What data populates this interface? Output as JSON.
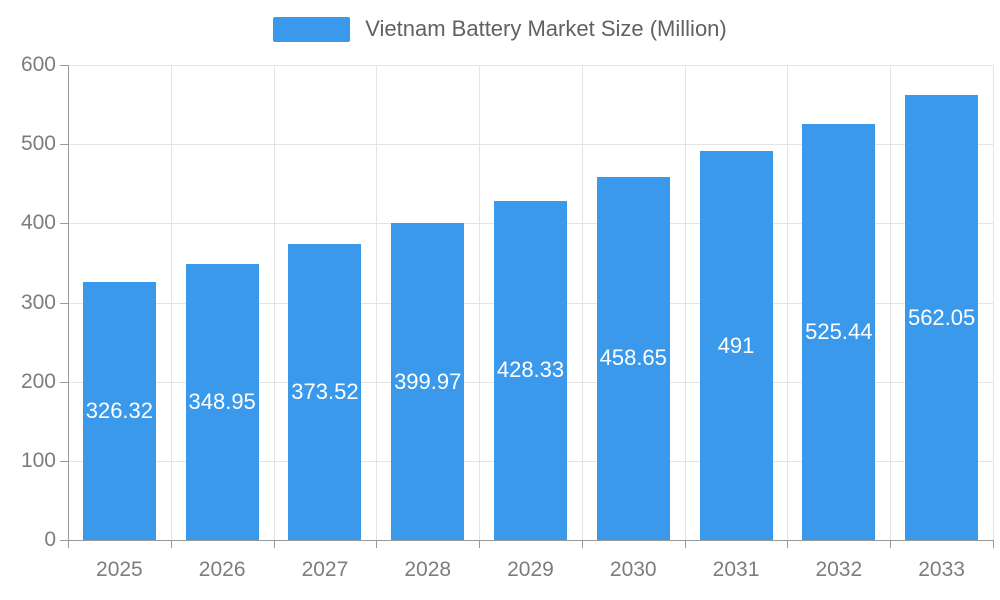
{
  "legend": {
    "position": "top-center",
    "items": [
      {
        "label": "Vietnam Battery Market Size (Million)",
        "color": "#3B99EB"
      }
    ]
  },
  "chart_data": {
    "type": "bar",
    "title": "Vietnam Battery Market Size (Million)",
    "categories": [
      "2025",
      "2026",
      "2027",
      "2028",
      "2029",
      "2030",
      "2031",
      "2032",
      "2033"
    ],
    "series": [
      {
        "name": "Vietnam Battery Market Size (Million)",
        "values": [
          326.32,
          348.95,
          373.52,
          399.97,
          428.33,
          458.65,
          491,
          525.44,
          562.05
        ]
      }
    ],
    "value_labels": [
      "326.32",
      "348.95",
      "373.52",
      "399.97",
      "428.33",
      "458.65",
      "491",
      "525.44",
      "562.05"
    ],
    "xlabel": "",
    "ylabel": "",
    "ylim": [
      0,
      600
    ],
    "y_ticks": [
      0,
      100,
      200,
      300,
      400,
      500,
      600
    ],
    "grid": true,
    "value_label_position": "inside-center",
    "legend_position": "top-center",
    "colors": {
      "bar": "#3B99EB",
      "value_label": "#ffffff",
      "axis_line": "#999999",
      "gridline": "#E4E4E4",
      "tick_text": "#7d7d7d",
      "legend_text": "#616161",
      "background": "#ffffff"
    }
  }
}
